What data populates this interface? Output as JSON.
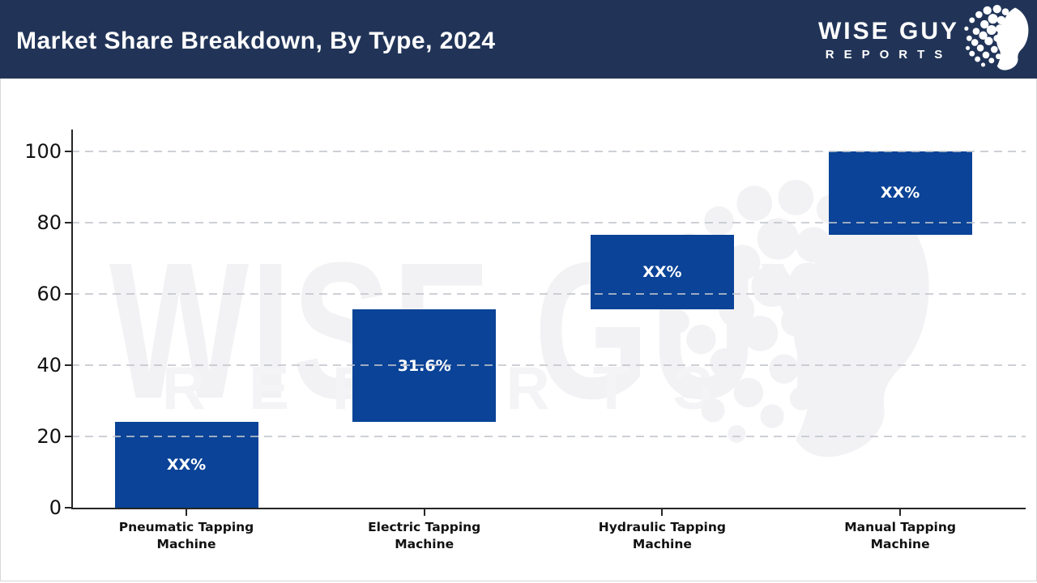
{
  "header": {
    "title": "Market Share Breakdown, By Type, 2024",
    "bg_color": "#213458",
    "logo": {
      "line1": "WISE GUY",
      "line2": "REPORTS"
    }
  },
  "watermark": {
    "line1": "WISE GUY",
    "line2": "REPORTS"
  },
  "chart_data": {
    "type": "bar",
    "subtype": "waterfall",
    "title": "Market Share Breakdown, By Type, 2024",
    "categories": [
      "Pneumatic Tapping Machine",
      "Electric Tapping Machine",
      "Hydraulic Tapping Machine",
      "Manual Tapping Machine"
    ],
    "segments": [
      {
        "start": 0,
        "end": 24,
        "value": 24,
        "label": "XX%"
      },
      {
        "start": 24,
        "end": 55.6,
        "value": 31.6,
        "label": "31.6%"
      },
      {
        "start": 55.6,
        "end": 76.6,
        "value": 21,
        "label": "XX%"
      },
      {
        "start": 76.6,
        "end": 100,
        "value": 23.4,
        "label": "XX%"
      }
    ],
    "xlabel": "",
    "ylabel": "",
    "ylim": [
      0,
      100
    ],
    "yticks": [
      0,
      20,
      40,
      60,
      80,
      100
    ],
    "grid": "horizontal-dashed",
    "legend": "none",
    "bar_color": "#0a4397",
    "bar_label_color": "#ffffff",
    "axis_color": "#262626",
    "grid_color": "#d9d9d9",
    "tick_label_color": "#111111"
  }
}
